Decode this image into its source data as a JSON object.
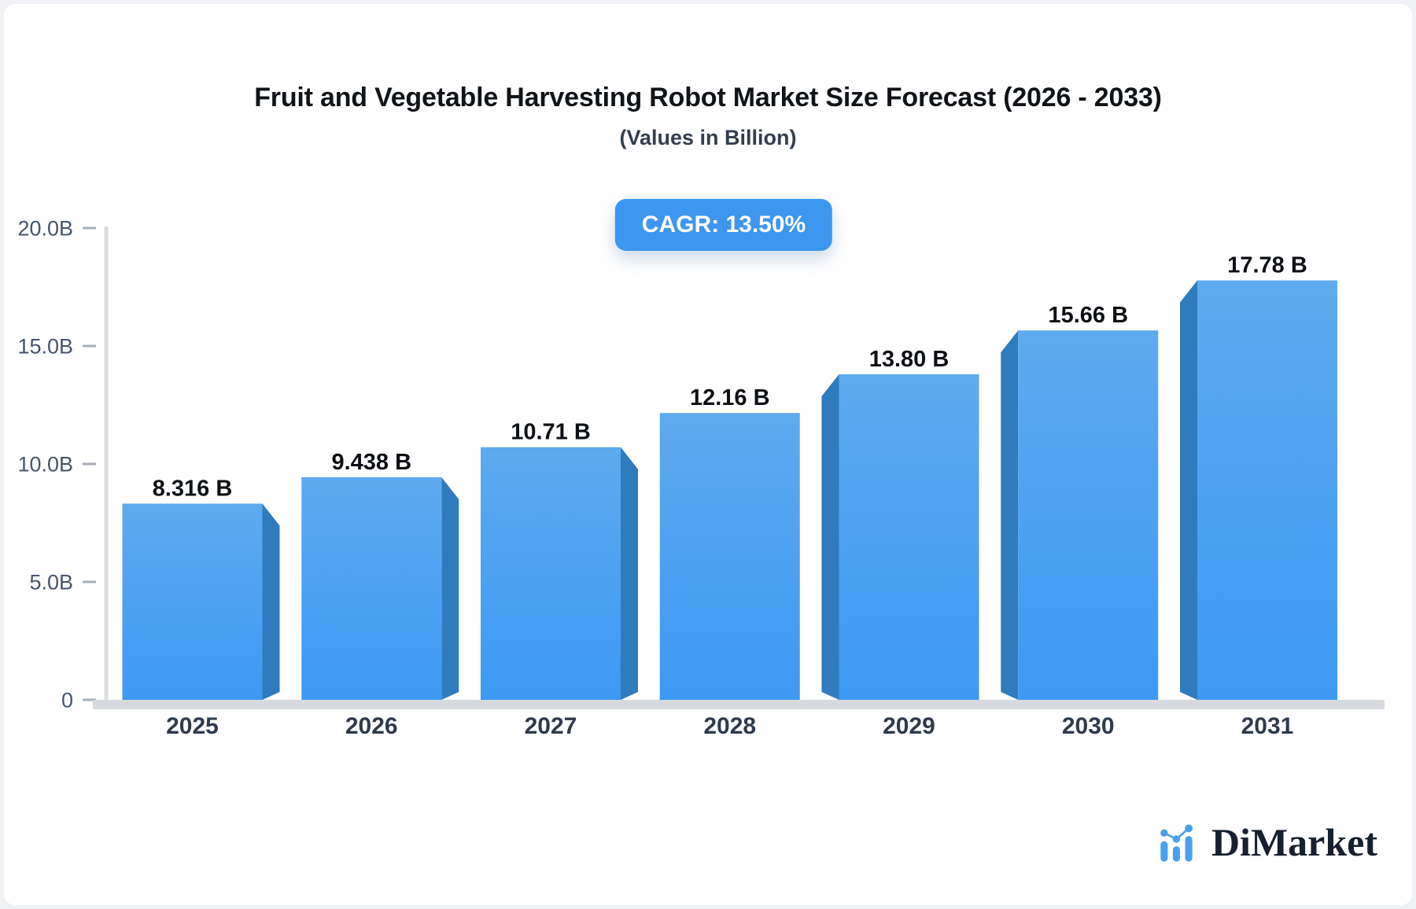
{
  "chart_data": {
    "type": "bar",
    "title": "Fruit and Vegetable Harvesting Robot Market Size Forecast (2026 - 2033)",
    "subtitle": "(Values in Billion)",
    "cagr_label": "CAGR: 13.50%",
    "categories": [
      "2025",
      "2026",
      "2027",
      "2028",
      "2029",
      "2030",
      "2031"
    ],
    "values": [
      8.316,
      9.438,
      10.71,
      12.16,
      13.8,
      15.66,
      17.78
    ],
    "value_labels": [
      "8.316 B",
      "9.438 B",
      "10.71 B",
      "12.16 B",
      "13.80 B",
      "15.66 B",
      "17.78 B"
    ],
    "yticks": [
      {
        "label": "20.0B",
        "value": 20
      },
      {
        "label": "15.0B",
        "value": 15
      },
      {
        "label": "10.0B",
        "value": 10
      },
      {
        "label": "5.0B",
        "value": 5
      },
      {
        "label": "0",
        "value": 0
      }
    ],
    "ylim": [
      0,
      20
    ],
    "xlabel": "",
    "ylabel": "",
    "grid": false,
    "legend": "none",
    "colors": {
      "bar_top": "#5eaaef",
      "bar_bottom": "#3d99f3",
      "bar_side": "#2f7bbd",
      "badge_bg": "#3d96ef",
      "axis_line": "#dadde2",
      "floor": "#d6d9de",
      "tick_dash": "#a6aeb8",
      "tick_text": "#46556a",
      "year_text": "#2f3b4c",
      "value_text": "#0d1014",
      "brand_blue": "#4aa0f0",
      "brand_navy": "#16202e"
    }
  },
  "footer": {
    "brand": "DiMarket"
  }
}
